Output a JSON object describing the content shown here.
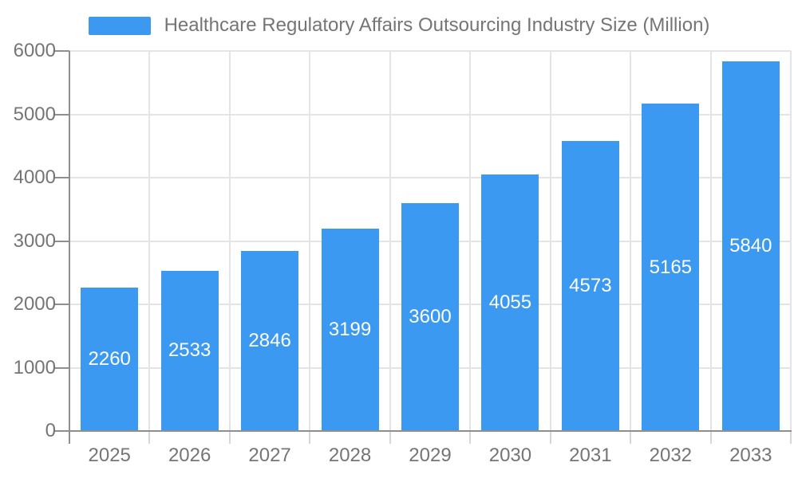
{
  "legend": {
    "label": "Healthcare Regulatory Affairs Outsourcing Industry Size (Million)"
  },
  "chart_data": {
    "type": "bar",
    "title": "Healthcare Regulatory Affairs Outsourcing Industry Size (Million)",
    "series": [
      {
        "name": "Healthcare Regulatory Affairs Outsourcing Industry Size (Million)",
        "values": [
          2260,
          2533,
          2846,
          3199,
          3600,
          4055,
          4573,
          5165,
          5840
        ]
      }
    ],
    "categories": [
      "2025",
      "2026",
      "2027",
      "2028",
      "2029",
      "2030",
      "2031",
      "2032",
      "2033"
    ],
    "data_labels": [
      "2260",
      "2533",
      "2846",
      "3199",
      "3600",
      "4055",
      "4573",
      "5165",
      "5840"
    ],
    "xlabel": "",
    "ylabel": "",
    "ylim": [
      0,
      6000
    ],
    "yticks": [
      0,
      1000,
      2000,
      3000,
      4000,
      5000,
      6000
    ],
    "ytick_labels": [
      "0",
      "1000",
      "2000",
      "3000",
      "4000",
      "5000",
      "6000"
    ],
    "grid": true,
    "legend_position": "top"
  },
  "colors": {
    "bar": "#3b99f2",
    "axis_text": "#757575",
    "bar_label_text": "#ffffff",
    "gridline": "#e4e4e4",
    "axis_line": "#8f8f8f",
    "x_tick": "#d6d6d6",
    "background": "#ffffff"
  }
}
